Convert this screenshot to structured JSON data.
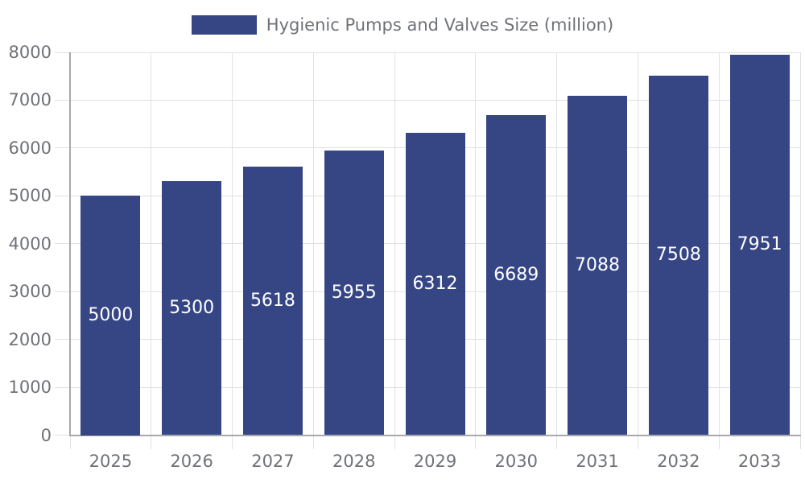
{
  "legend": {
    "label": "Hygienic Pumps and Valves Size (million)"
  },
  "chart_data": {
    "type": "bar",
    "title": "",
    "series_name": "Hygienic Pumps and Valves Size (million)",
    "categories": [
      "2025",
      "2026",
      "2027",
      "2028",
      "2029",
      "2030",
      "2031",
      "2032",
      "2033"
    ],
    "values": [
      5000,
      5300,
      5618,
      5955,
      6312,
      6689,
      7088,
      7508,
      7951
    ],
    "xlabel": "",
    "ylabel": "",
    "ylim": [
      0,
      8000
    ],
    "ytick_step": 1000,
    "yticks": [
      0,
      1000,
      2000,
      3000,
      4000,
      5000,
      6000,
      7000,
      8000
    ],
    "grid": true,
    "legend_position": "top",
    "bar_labels_inside": true
  },
  "colors": {
    "bar": "#364685",
    "bar_label": "#ffffff",
    "grid": "#e1e1e4",
    "axis": "#a8a8ad",
    "text": "#6f7277",
    "background": "#ffffff"
  }
}
